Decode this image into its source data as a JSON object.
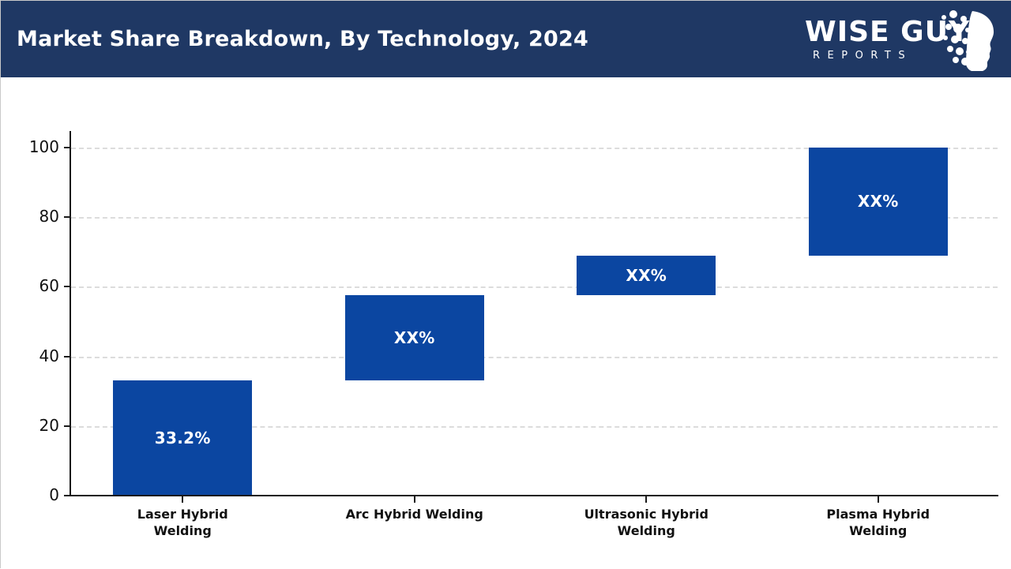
{
  "header": {
    "title": "Market Share Breakdown, By Technology, 2024",
    "logo": {
      "line1": "WISE GUY",
      "line2": "R E P O R T S"
    }
  },
  "watermark": {
    "line1": "WISE GUY",
    "line2": "R E P O R T S"
  },
  "colors": {
    "header_bg": "#1f3864",
    "bar": "#0b46a1",
    "grid": "#dcdcdc",
    "axis": "#1a1a1a",
    "watermark": "#f2f2f4",
    "title_text": "#ffffff",
    "bar_label_text": "#ffffff"
  },
  "chart_data": {
    "type": "bar",
    "subtype": "waterfall",
    "title": "Market Share Breakdown, By Technology, 2024",
    "xlabel": "",
    "ylabel": "",
    "legend": "none",
    "grid": "horizontal-dashed",
    "yticks": [
      0,
      20,
      40,
      60,
      80,
      100
    ],
    "ylim": [
      0,
      104.8
    ],
    "categories": [
      "Laser Hybrid Welding",
      "Arc Hybrid Welding",
      "Ultrasonic Hybrid Welding",
      "Plasma Hybrid Welding"
    ],
    "category_lines": [
      [
        "Laser Hybrid",
        "Welding"
      ],
      [
        "Arc Hybrid Welding"
      ],
      [
        "Ultrasonic Hybrid",
        "Welding"
      ],
      [
        "Plasma Hybrid",
        "Welding"
      ]
    ],
    "segments": [
      {
        "category": "Laser Hybrid Welding",
        "start": 0,
        "end": 33.2,
        "label": "33.2%"
      },
      {
        "category": "Arc Hybrid Welding",
        "start": 33.2,
        "end": 57.7,
        "label": "XX%"
      },
      {
        "category": "Ultrasonic Hybrid Welding",
        "start": 57.7,
        "end": 69.0,
        "label": "XX%"
      },
      {
        "category": "Plasma Hybrid Welding",
        "start": 69.0,
        "end": 100,
        "label": "XX%"
      }
    ]
  }
}
